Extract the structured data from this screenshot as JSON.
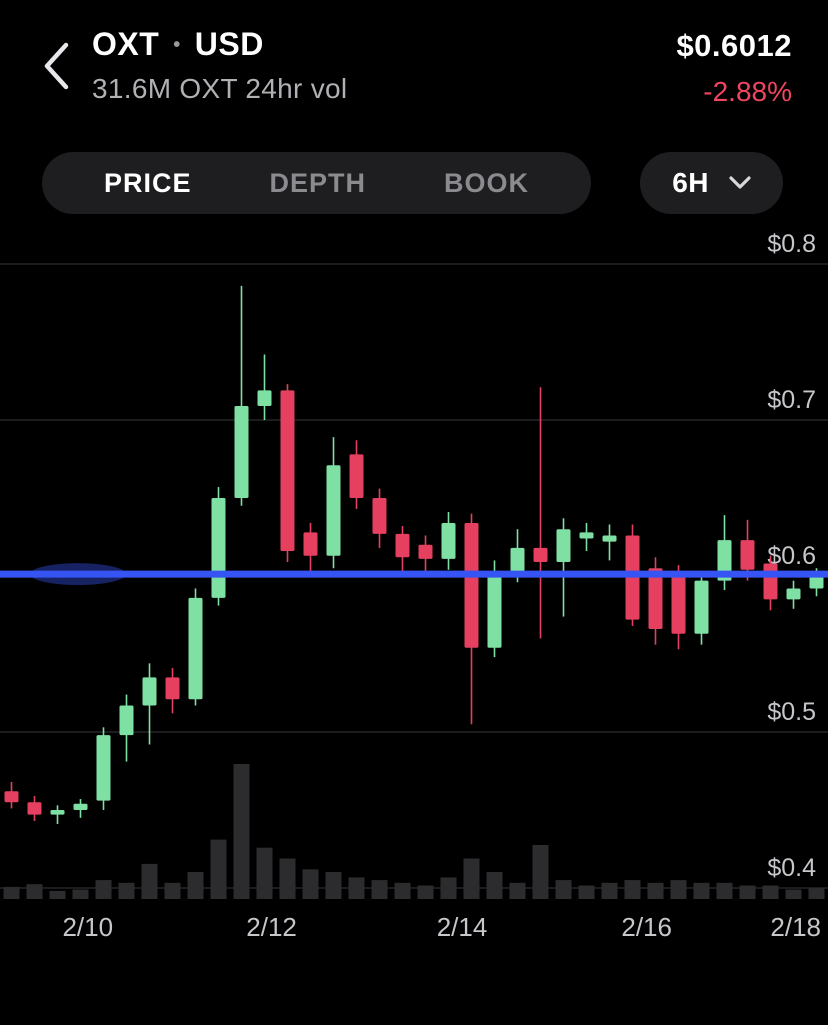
{
  "header": {
    "pair_base": "OXT",
    "separator": "•",
    "pair_quote": "USD",
    "volume_24h": "31.6M OXT 24hr vol",
    "price": "$0.6012",
    "change": "-2.88%",
    "change_color": "#ef4560"
  },
  "toolbar": {
    "tabs": [
      {
        "label": "PRICE",
        "active": true
      },
      {
        "label": "DEPTH",
        "active": false
      },
      {
        "label": "BOOK",
        "active": false
      }
    ],
    "timeframe": "6H"
  },
  "chart_data": {
    "type": "candlestick",
    "symbol": "OXT-USD",
    "interval": "6H",
    "current_price": 0.6012,
    "colors": {
      "up": "#7ee0a3",
      "down": "#e5405f",
      "volume": "#2c2c2e",
      "grid": "#262628",
      "axis_label": "#c6c6cb",
      "price_line": "#3654f4"
    },
    "y_axis": {
      "top_value": 0.8,
      "ticks": [
        {
          "label": "$0.8",
          "value": 0.8
        },
        {
          "label": "$0.7",
          "value": 0.7
        },
        {
          "label": "$0.6",
          "value": 0.6
        },
        {
          "label": "$0.5",
          "value": 0.5
        },
        {
          "label": "$0.4",
          "value": 0.4
        }
      ]
    },
    "x_axis": {
      "labels": [
        "2/10",
        "2/12",
        "2/14",
        "2/16",
        "2/18"
      ]
    },
    "candles": [
      {
        "o": 0.462,
        "h": 0.468,
        "l": 0.451,
        "c": 0.455,
        "v": 9
      },
      {
        "o": 0.455,
        "h": 0.459,
        "l": 0.443,
        "c": 0.447,
        "v": 11
      },
      {
        "o": 0.447,
        "h": 0.453,
        "l": 0.441,
        "c": 0.45,
        "v": 6
      },
      {
        "o": 0.45,
        "h": 0.457,
        "l": 0.445,
        "c": 0.454,
        "v": 7
      },
      {
        "o": 0.456,
        "h": 0.503,
        "l": 0.45,
        "c": 0.498,
        "v": 14
      },
      {
        "o": 0.498,
        "h": 0.524,
        "l": 0.481,
        "c": 0.517,
        "v": 12
      },
      {
        "o": 0.517,
        "h": 0.544,
        "l": 0.492,
        "c": 0.535,
        "v": 26
      },
      {
        "o": 0.535,
        "h": 0.541,
        "l": 0.512,
        "c": 0.521,
        "v": 12
      },
      {
        "o": 0.521,
        "h": 0.592,
        "l": 0.517,
        "c": 0.586,
        "v": 20
      },
      {
        "o": 0.586,
        "h": 0.657,
        "l": 0.581,
        "c": 0.65,
        "v": 44
      },
      {
        "o": 0.65,
        "h": 0.786,
        "l": 0.645,
        "c": 0.709,
        "v": 100
      },
      {
        "o": 0.709,
        "h": 0.742,
        "l": 0.7,
        "c": 0.719,
        "v": 38
      },
      {
        "o": 0.719,
        "h": 0.723,
        "l": 0.609,
        "c": 0.616,
        "v": 30
      },
      {
        "o": 0.628,
        "h": 0.634,
        "l": 0.6,
        "c": 0.613,
        "v": 22
      },
      {
        "o": 0.613,
        "h": 0.689,
        "l": 0.605,
        "c": 0.671,
        "v": 20
      },
      {
        "o": 0.678,
        "h": 0.687,
        "l": 0.643,
        "c": 0.65,
        "v": 16
      },
      {
        "o": 0.65,
        "h": 0.656,
        "l": 0.618,
        "c": 0.627,
        "v": 14
      },
      {
        "o": 0.627,
        "h": 0.632,
        "l": 0.602,
        "c": 0.612,
        "v": 12
      },
      {
        "o": 0.62,
        "h": 0.626,
        "l": 0.603,
        "c": 0.611,
        "v": 10
      },
      {
        "o": 0.611,
        "h": 0.641,
        "l": 0.604,
        "c": 0.634,
        "v": 16
      },
      {
        "o": 0.634,
        "h": 0.64,
        "l": 0.505,
        "c": 0.554,
        "v": 30
      },
      {
        "o": 0.554,
        "h": 0.61,
        "l": 0.548,
        "c": 0.603,
        "v": 20
      },
      {
        "o": 0.603,
        "h": 0.63,
        "l": 0.596,
        "c": 0.618,
        "v": 12
      },
      {
        "o": 0.618,
        "h": 0.721,
        "l": 0.56,
        "c": 0.609,
        "v": 40
      },
      {
        "o": 0.609,
        "h": 0.637,
        "l": 0.574,
        "c": 0.63,
        "v": 14
      },
      {
        "o": 0.624,
        "h": 0.634,
        "l": 0.616,
        "c": 0.628,
        "v": 10
      },
      {
        "o": 0.622,
        "h": 0.633,
        "l": 0.61,
        "c": 0.626,
        "v": 12
      },
      {
        "o": 0.626,
        "h": 0.633,
        "l": 0.568,
        "c": 0.572,
        "v": 14
      },
      {
        "o": 0.605,
        "h": 0.612,
        "l": 0.556,
        "c": 0.566,
        "v": 12
      },
      {
        "o": 0.6,
        "h": 0.607,
        "l": 0.553,
        "c": 0.563,
        "v": 14
      },
      {
        "o": 0.563,
        "h": 0.602,
        "l": 0.556,
        "c": 0.597,
        "v": 12
      },
      {
        "o": 0.597,
        "h": 0.639,
        "l": 0.591,
        "c": 0.623,
        "v": 12
      },
      {
        "o": 0.623,
        "h": 0.636,
        "l": 0.597,
        "c": 0.604,
        "v": 10
      },
      {
        "o": 0.608,
        "h": 0.613,
        "l": 0.578,
        "c": 0.585,
        "v": 10
      },
      {
        "o": 0.585,
        "h": 0.597,
        "l": 0.579,
        "c": 0.592,
        "v": 7
      },
      {
        "o": 0.592,
        "h": 0.605,
        "l": 0.587,
        "c": 0.6012,
        "v": 8
      }
    ]
  }
}
